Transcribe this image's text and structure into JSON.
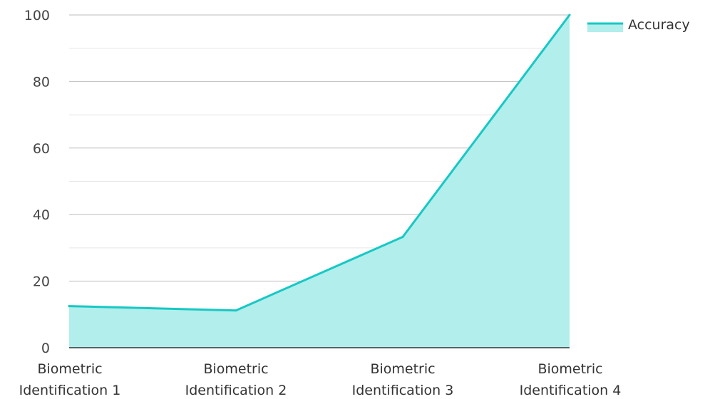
{
  "chart_data": {
    "type": "area",
    "categories": [
      [
        "Biometric",
        "Identification 1"
      ],
      [
        "Biometric",
        "Identification 2"
      ],
      [
        "Biometric",
        "Identification 3"
      ],
      [
        "Biometric",
        "Identification 4"
      ]
    ],
    "series": [
      {
        "name": "Accuracy",
        "values": [
          12.5,
          11.2,
          33.3,
          100
        ]
      }
    ],
    "ylim": [
      0,
      100
    ],
    "yticks": [
      "0",
      "20",
      "40",
      "60",
      "80",
      "100"
    ],
    "grid": true,
    "legend": "top-right",
    "title": "",
    "xlabel": "",
    "ylabel": ""
  },
  "colors": {
    "line": "#17c8c4",
    "fill": "#b1eeec",
    "legend_fill": "#b1eeec"
  }
}
